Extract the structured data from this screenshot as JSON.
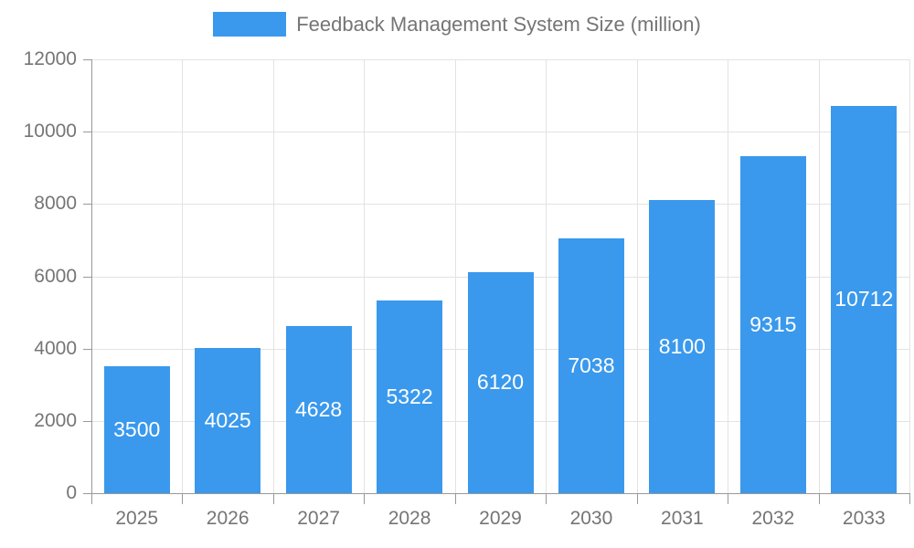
{
  "legend": {
    "label": "Feedback Management System Size (million)"
  },
  "colors": {
    "bar": "#3A99EC",
    "grid": "#E3E3E3",
    "axis": "#999999",
    "text": "#757575",
    "bar_label": "#FFFFFF",
    "background": "#FFFFFF"
  },
  "chart_data": {
    "type": "bar",
    "title": "Feedback Management System Size (million)",
    "categories": [
      "2025",
      "2026",
      "2027",
      "2028",
      "2029",
      "2030",
      "2031",
      "2032",
      "2033"
    ],
    "values": [
      3500,
      4025,
      4628,
      5322,
      6120,
      7038,
      8100,
      9315,
      10712
    ],
    "xlabel": "",
    "ylabel": "",
    "ylim": [
      0,
      12000
    ],
    "ytick_step": 2000,
    "ytick_labels": [
      "0",
      "2000",
      "4000",
      "6000",
      "8000",
      "10000",
      "12000"
    ],
    "grid": true,
    "legend_position": "top",
    "value_labels_inside_bars": true
  }
}
